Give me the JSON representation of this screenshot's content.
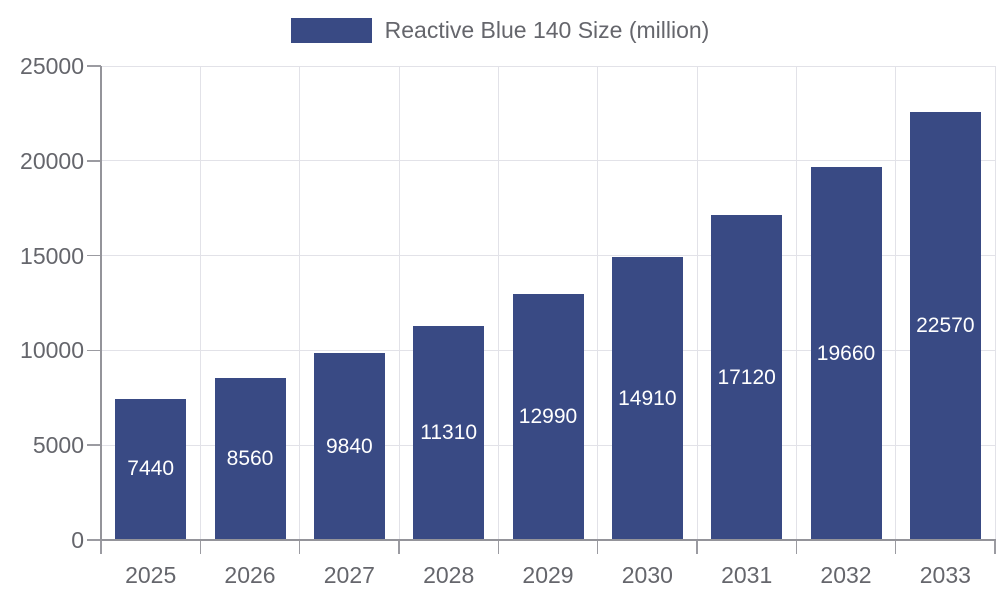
{
  "legend": {
    "label": "Reactive Blue 140 Size (million)"
  },
  "chart_data": {
    "type": "bar",
    "title": "Reactive Blue 140 Size (million)",
    "series_name": "Reactive Blue 140 Size (million)",
    "categories": [
      "2025",
      "2026",
      "2027",
      "2028",
      "2029",
      "2030",
      "2031",
      "2032",
      "2033"
    ],
    "values": [
      7440,
      8560,
      9840,
      11310,
      12990,
      14910,
      17120,
      19660,
      22570
    ],
    "value_labels": [
      "7440",
      "8560",
      "9840",
      "11310",
      "12990",
      "14910",
      "17120",
      "19660",
      "22570"
    ],
    "xlabel": "",
    "ylabel": "",
    "ylim": [
      0,
      25000
    ],
    "yticks": [
      0,
      5000,
      10000,
      15000,
      20000,
      25000
    ],
    "ytick_labels": [
      "0",
      "5000",
      "10000",
      "15000",
      "20000",
      "25000"
    ],
    "grid": true,
    "legend_position": "top-center",
    "value_labels_position": "inside-center",
    "colors": {
      "bar": "#394A84",
      "value_label": "#FFFFFF",
      "axis_text": "#65666C",
      "grid_line": "#E2E2E8",
      "axis_line": "#94949A",
      "tick": "#9B9BA1",
      "background": "#FFFFFF"
    }
  }
}
